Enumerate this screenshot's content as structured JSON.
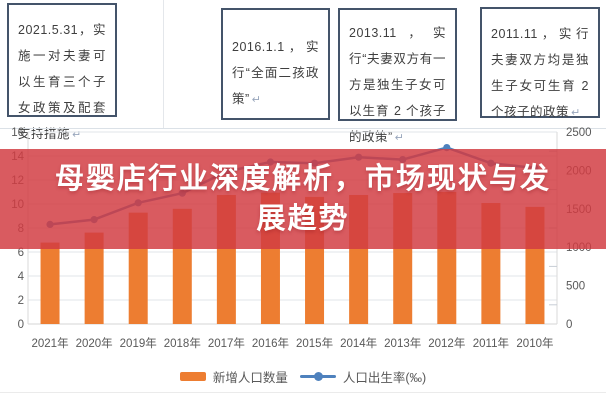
{
  "timeline": {
    "return_mark": "↵",
    "boxes": [
      {
        "text": "2021.5.31，实施一对夫妻可以生育三个子女政策及配套支持措施"
      },
      {
        "text": "2016.1.1，实行“全面二孩政策”"
      },
      {
        "text": "2013.11，实行“夫妻双方有一方是独生子女可以生育 2 个孩子的政策”"
      },
      {
        "text": "2011.11，实行夫妻双方均是独生子女可生育 2 个孩子的政策"
      }
    ]
  },
  "overlay": {
    "title": "母婴店行业深度解析，市场现状与发展趋势",
    "band_color": "rgba(210,59,66,0.84)",
    "title_color": "#FFFFFF"
  },
  "chart_data": {
    "type": "combo (bar + line)",
    "categories": [
      "2021年",
      "2020年",
      "2019年",
      "2018年",
      "2017年",
      "2016年",
      "2015年",
      "2014年",
      "2013年",
      "2012年",
      "2011年",
      "2010年"
    ],
    "series": [
      {
        "name": "新增人口数量",
        "type": "bar",
        "axis": "right",
        "color": "#ED7D31",
        "values": [
          1060,
          1190,
          1450,
          1500,
          1680,
          1710,
          1655,
          1680,
          1705,
          1720,
          1575,
          1525
        ]
      },
      {
        "name": "人口出生率(‰)",
        "type": "line",
        "axis": "left",
        "color": "#4E81BD",
        "values": [
          8.3,
          8.7,
          10.1,
          10.9,
          12.7,
          13.5,
          13.4,
          13.9,
          13.7,
          14.7,
          13.4,
          13.0
        ]
      }
    ],
    "left_axis": {
      "min": 0,
      "max": 16,
      "ticks": [
        16,
        14,
        12,
        10,
        8,
        6,
        4,
        2,
        0
      ]
    },
    "right_axis": {
      "min": 0,
      "max": 2500,
      "ticks": [
        2500,
        2000,
        1500,
        1000,
        500,
        0
      ],
      "minor_step": 250
    },
    "grid": "horizontal only",
    "legend_position": "bottom",
    "axis_label_color": "#595959"
  }
}
